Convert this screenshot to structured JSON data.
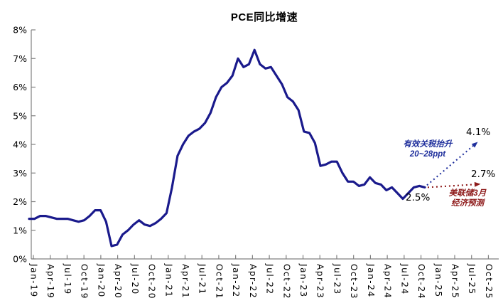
{
  "chart_data": {
    "type": "line",
    "title": "PCE同比增速",
    "xlabel": "",
    "ylabel": "",
    "ylim": [
      0,
      8
    ],
    "grid": false,
    "legend_position": "none",
    "axis_color": "#808080",
    "y_tick_labels": [
      "0%",
      "1%",
      "2%",
      "3%",
      "4%",
      "5%",
      "6%",
      "7%",
      "8%"
    ],
    "x_tick_labels": [
      "Jan-19",
      "Apr-19",
      "Jul-19",
      "Oct-19",
      "Jan-20",
      "Apr-20",
      "Jul-20",
      "Oct-20",
      "Jan-21",
      "Apr-21",
      "Jul-21",
      "Oct-21",
      "Jan-22",
      "Apr-22",
      "Jul-22",
      "Oct-22",
      "Jan-23",
      "Apr-23",
      "Jul-23",
      "Oct-23",
      "Jan-24",
      "Apr-24",
      "Jul-24",
      "Oct-24",
      "Jan-25",
      "Apr-25",
      "Jul-25",
      "Oct-25"
    ],
    "x_monthly_range": "Jan-19 to Jan-25",
    "series": [
      {
        "name": "PCE YoY %",
        "color": "#1a1a8c",
        "values": [
          1.4,
          1.4,
          1.5,
          1.5,
          1.45,
          1.4,
          1.4,
          1.4,
          1.35,
          1.3,
          1.35,
          1.5,
          1.7,
          1.7,
          1.3,
          0.45,
          0.5,
          0.85,
          1.0,
          1.2,
          1.35,
          1.2,
          1.15,
          1.25,
          1.4,
          1.6,
          2.5,
          3.6,
          4.0,
          4.3,
          4.45,
          4.55,
          4.75,
          5.1,
          5.65,
          6.0,
          6.15,
          6.4,
          7.0,
          6.7,
          6.8,
          7.3,
          6.8,
          6.65,
          6.7,
          6.4,
          6.1,
          5.65,
          5.5,
          5.2,
          4.45,
          4.4,
          4.05,
          3.25,
          3.3,
          3.4,
          3.4,
          3.0,
          2.7,
          2.7,
          2.55,
          2.6,
          2.85,
          2.65,
          2.6,
          2.4,
          2.5,
          2.3,
          2.1,
          2.3,
          2.5,
          2.55,
          2.5
        ]
      }
    ],
    "annotations": {
      "last_actual": {
        "value_label": "2.5%",
        "value": 2.5
      },
      "tariff_scenario": {
        "value_label": "4.1%",
        "value": 4.1,
        "note_line1": "有效关税抬升",
        "note_line2": "20~28ppt",
        "color": "#1f2f9c",
        "arrow_style": "dotted"
      },
      "fed_forecast": {
        "value_label": "2.7%",
        "value": 2.7,
        "note_line1": "美联储3月",
        "note_line2": "经济预测",
        "color": "#8e1a1a",
        "arrow_style": "dotted"
      }
    }
  }
}
